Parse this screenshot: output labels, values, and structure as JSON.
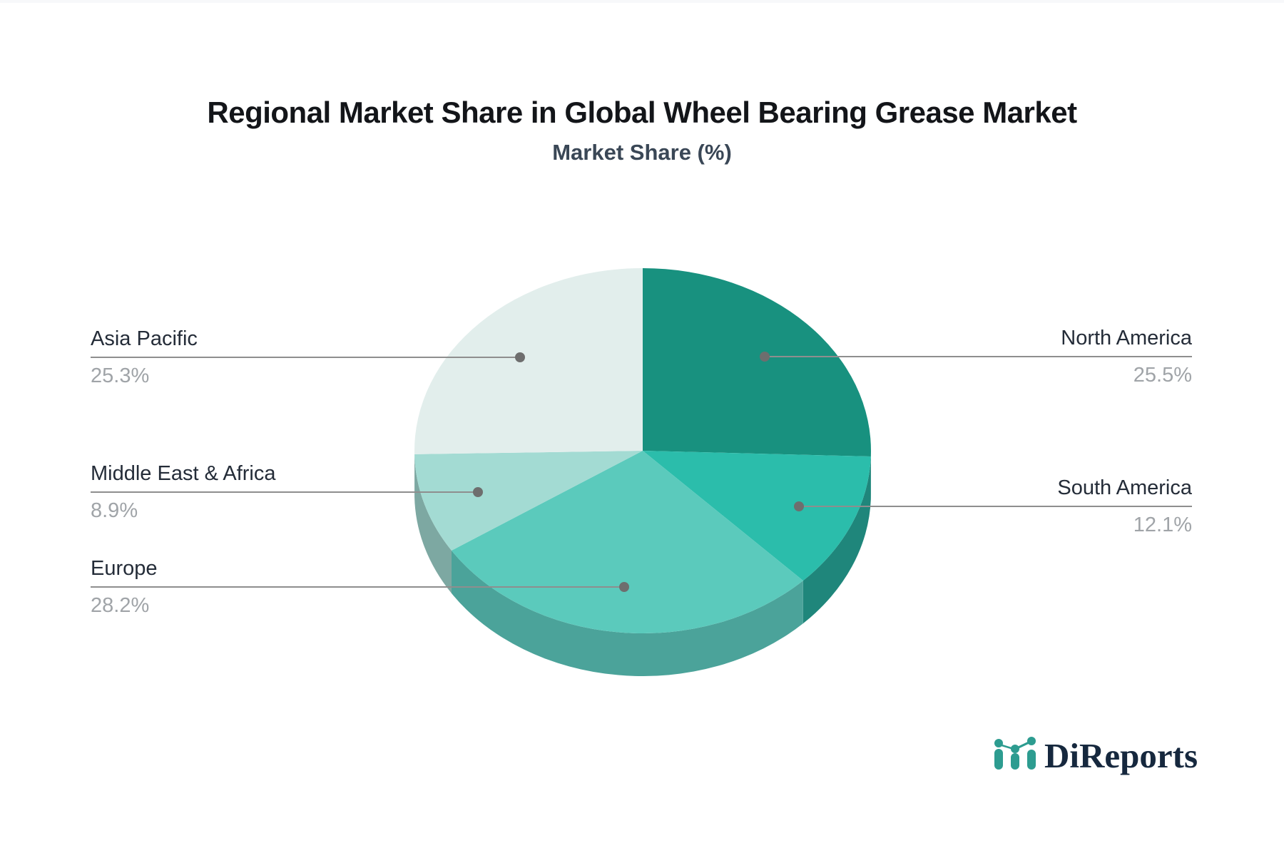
{
  "page": {
    "background": "#ffffff",
    "top_strip_color": "#f7f8fa"
  },
  "header": {
    "title": "Regional Market Share in Global Wheel Bearing Grease Market",
    "subtitle": "Market Share (%)"
  },
  "chart_data": {
    "type": "pie",
    "title": "Regional Market Share in Global Wheel Bearing Grease Market",
    "subtitle": "Market Share (%)",
    "unit": "%",
    "style": "3d-pie",
    "rotation": "clockwise-from-12-oclock",
    "legend_position": "callout-labels-left-right",
    "categories": [
      "North America",
      "South America",
      "Europe",
      "Middle East & Africa",
      "Asia Pacific"
    ],
    "values": [
      25.5,
      12.1,
      28.2,
      8.9,
      25.3
    ],
    "slices": [
      {
        "label": "North America",
        "value": 25.5,
        "pct_text": "25.5%",
        "color": "#18917F",
        "depth_color": "#15796B",
        "label_side": "right"
      },
      {
        "label": "South America",
        "value": 12.1,
        "pct_text": "12.1%",
        "color": "#2BBDAB",
        "depth_color": "#1F867B",
        "label_side": "right"
      },
      {
        "label": "Europe",
        "value": 28.2,
        "pct_text": "28.2%",
        "color": "#5BCABC",
        "depth_color": "#4BA39A",
        "label_side": "left"
      },
      {
        "label": "Middle East & Africa",
        "value": 8.9,
        "pct_text": "8.9%",
        "color": "#A3DBD3",
        "depth_color": "#7DA8A2",
        "label_side": "left"
      },
      {
        "label": "Asia Pacific",
        "value": 25.3,
        "pct_text": "25.3%",
        "color": "#E2EEEC",
        "depth_color": "#B9CFCC",
        "label_side": "left"
      }
    ]
  },
  "logo": {
    "text": "DiReports",
    "icon": "bar-chart-sparkline-icon",
    "icon_color": "#2D9C90",
    "text_color": "#16283E"
  },
  "styles": {
    "title_color": "#131519",
    "subtitle_color": "#3A4756",
    "label_color": "#242C38",
    "pct_color": "#A0A4A8",
    "leader_line_color": "#8E8E8E",
    "leader_dot_color": "#6E6E6E"
  }
}
